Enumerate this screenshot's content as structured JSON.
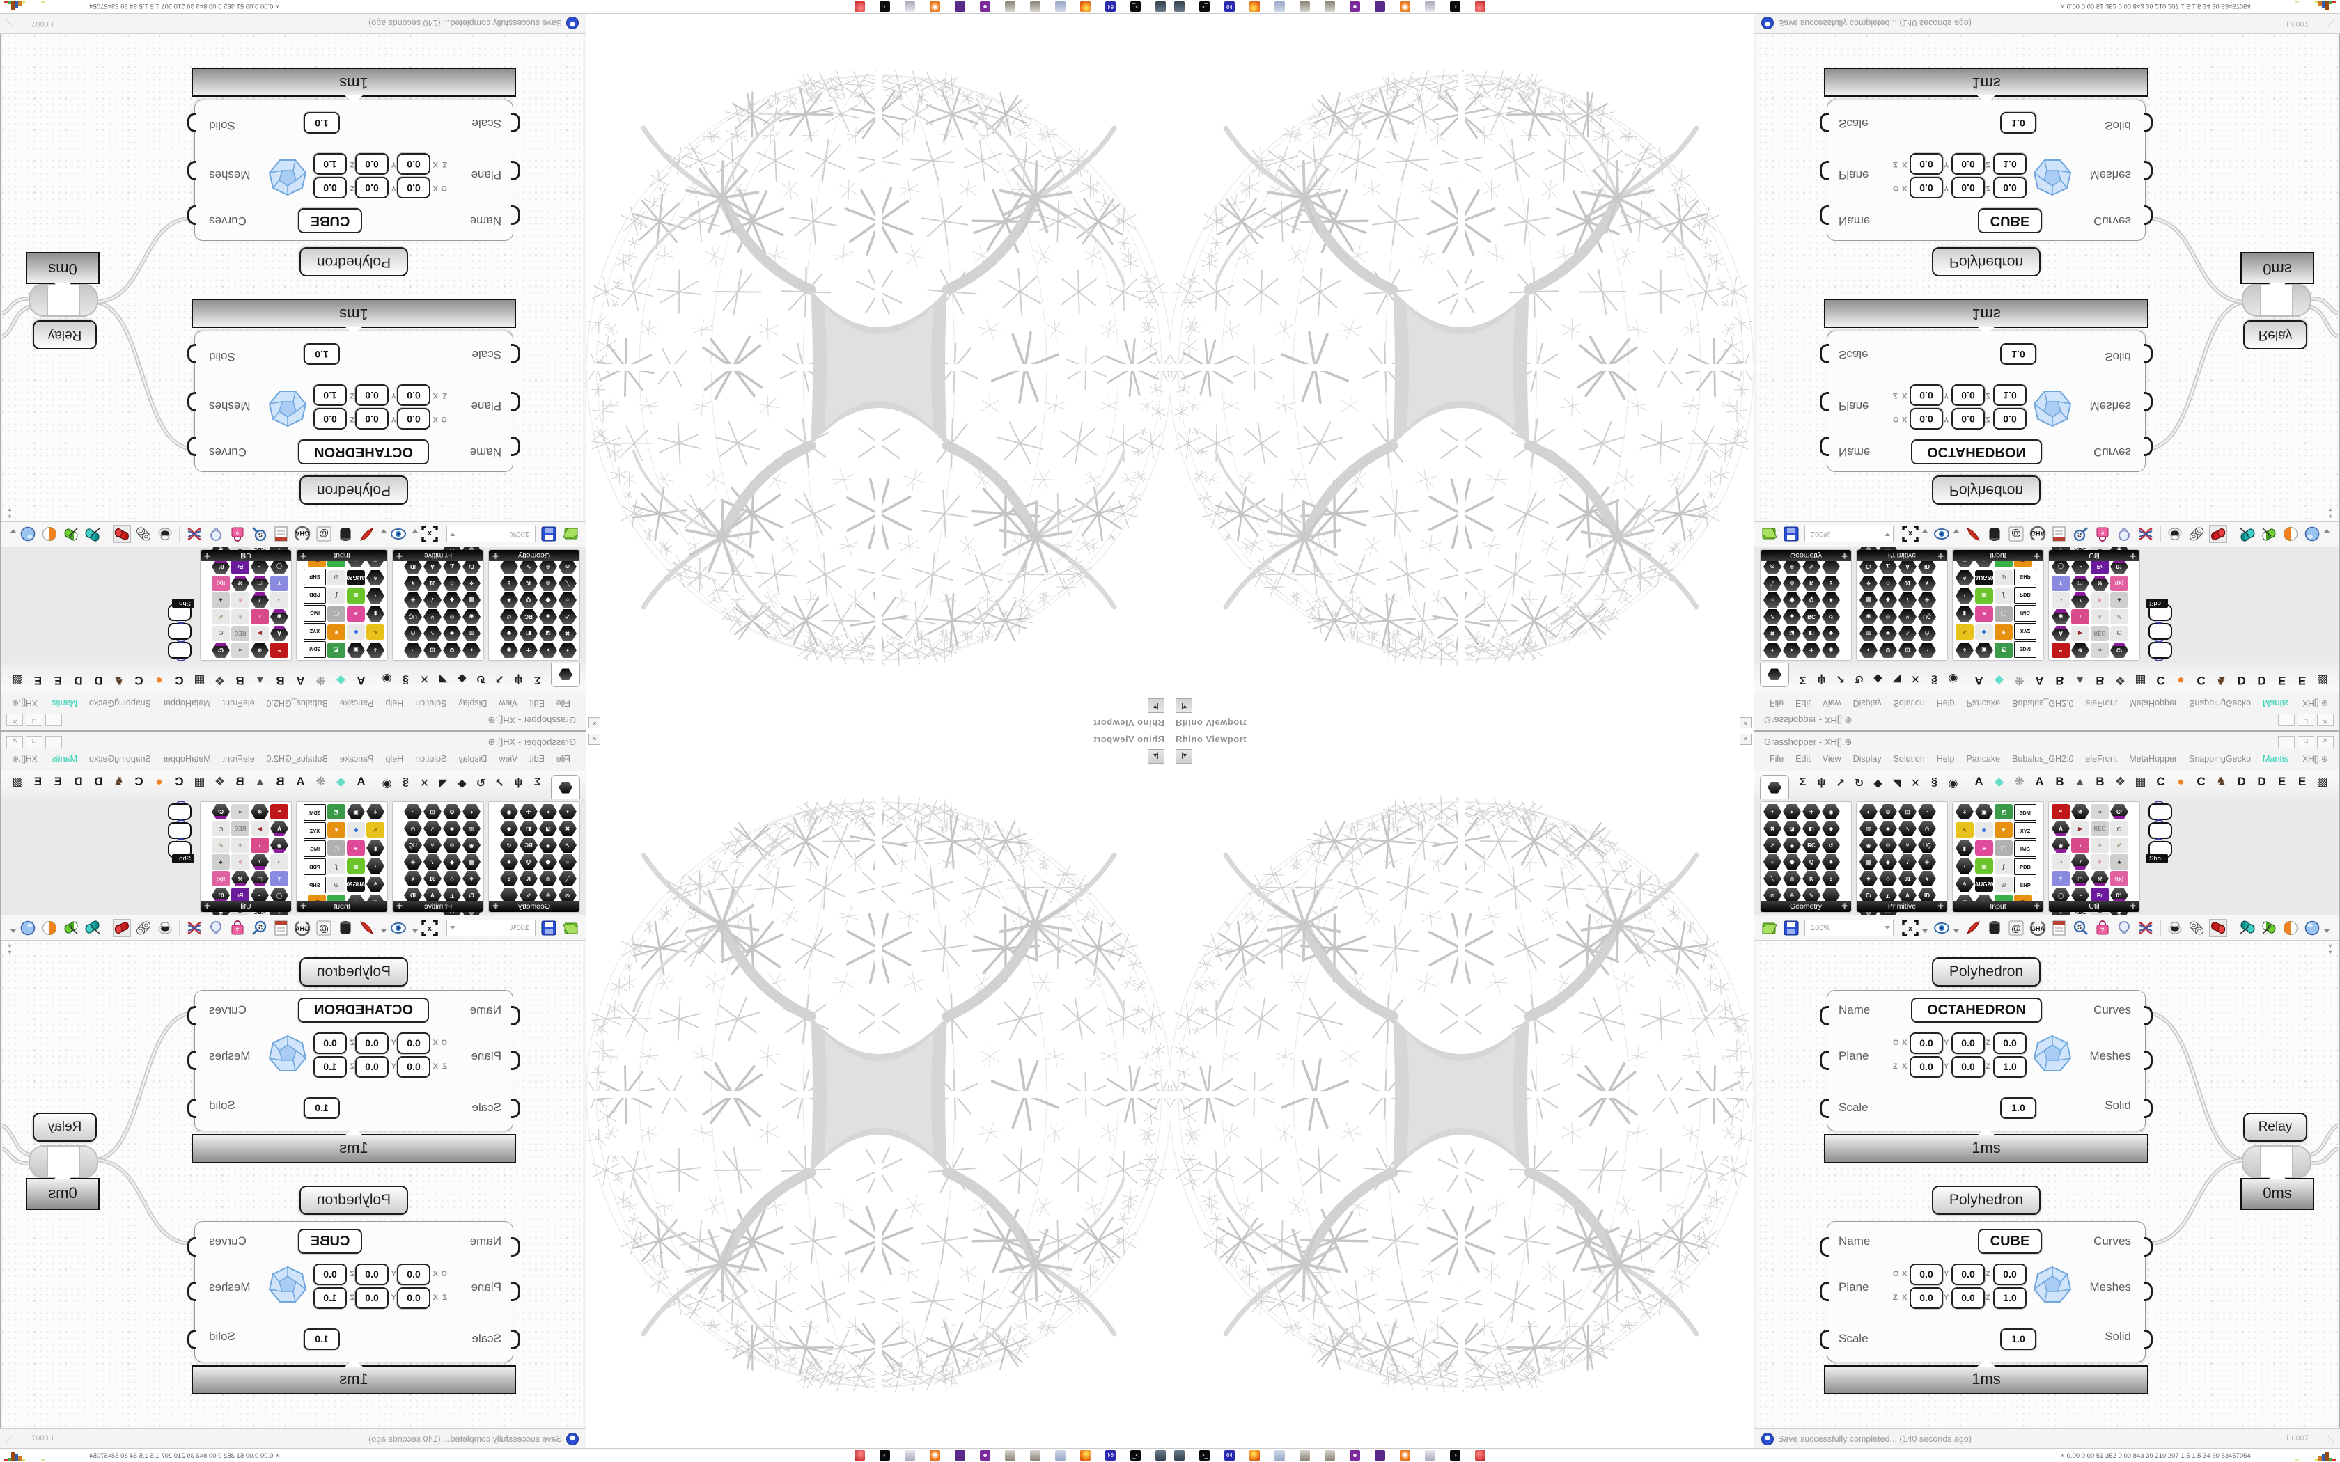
{
  "window": {
    "title": "Grasshopper - XH[].⊕",
    "buttons": [
      "–",
      "□",
      "✕"
    ]
  },
  "viewport": {
    "title": "Rhino Viewport",
    "close_label": "✕",
    "menu_button": "|▾"
  },
  "menu": {
    "items": [
      "File",
      "Edit",
      "View",
      "Display",
      "Solution",
      "Help",
      "Pancake",
      "Bubalus_GH2.0",
      "eleFront",
      "MetaHopper",
      "SnappingGecko",
      "Mantis"
    ],
    "mantis_color": "#35d3b7",
    "right": "XH[].⊕"
  },
  "tabs": {
    "left": [
      "Σ",
      "ψ",
      "↗",
      "↻",
      "◆",
      "◥",
      "✕",
      "§",
      "◉"
    ],
    "right": [
      {
        "g": "A",
        "c": "#1a1a1a"
      },
      {
        "g": "◆",
        "c": "#63dcc8"
      },
      {
        "g": "❋",
        "c": "#9a9a9a"
      },
      {
        "g": "A",
        "c": "#1a1a1a"
      },
      {
        "g": "B",
        "c": "#1a1a1a"
      },
      {
        "g": "▲",
        "c": "#555555"
      },
      {
        "g": "B",
        "c": "#1a1a1a"
      },
      {
        "g": "❖",
        "c": "#444444"
      },
      {
        "g": "▦",
        "c": "#333333"
      },
      {
        "g": "C",
        "c": "#1a1a1a"
      },
      {
        "g": "●",
        "c": "#f08228"
      },
      {
        "g": "C",
        "c": "#1a1a1a"
      },
      {
        "g": "♞",
        "c": "#5a3a22"
      },
      {
        "g": "D",
        "c": "#1a1a1a"
      },
      {
        "g": "D",
        "c": "#1a1a1a"
      },
      {
        "g": "E",
        "c": "#1a1a1a"
      },
      {
        "g": "E",
        "c": "#1a1a1a"
      },
      {
        "g": "▩",
        "c": "#333333"
      }
    ]
  },
  "palettes": [
    {
      "label": "Geometry",
      "cells": [
        {
          "g": "✦"
        },
        {
          "g": "➤"
        },
        {
          "g": "✚"
        },
        {
          "g": "◉"
        },
        {
          "g": "✖"
        },
        {
          "g": "◪"
        },
        {
          "g": "◧"
        },
        {
          "g": "◆"
        },
        {
          "g": "↗"
        },
        {
          "g": "◈"
        },
        {
          "g": "RC"
        },
        {
          "g": "↺"
        },
        {
          "g": "○"
        },
        {
          "g": "⬟"
        },
        {
          "g": "Q"
        },
        {
          "g": "✸"
        },
        {
          "g": "╲"
        },
        {
          "g": "◍"
        },
        {
          "g": "K"
        },
        {
          "g": "6"
        },
        {
          "g": "⊘"
        },
        {
          "g": "❆"
        },
        {
          "g": "✎"
        },
        {
          "g": ""
        }
      ]
    },
    {
      "label": "Primitive",
      "cells": [
        {
          "g": "◐"
        },
        {
          "g": "✪"
        },
        {
          "g": "⊞"
        },
        {
          "g": "◔"
        },
        {
          "g": "▥"
        },
        {
          "g": "◈"
        },
        {
          "g": "➴"
        },
        {
          "g": "◷"
        },
        {
          "g": "◉"
        },
        {
          "g": "⚙"
        },
        {
          "g": "⑂"
        },
        {
          "g": "UÇ"
        },
        {
          "g": "▦"
        },
        {
          "g": "◆"
        },
        {
          "g": "7"
        },
        {
          "g": "＋"
        },
        {
          "g": "❖"
        },
        {
          "g": "◇"
        },
        {
          "g": "01"
        },
        {
          "g": "#"
        },
        {
          "g": "C/"
        },
        {
          "g": "◭"
        },
        {
          "g": "A"
        },
        {
          "g": "ID"
        },
        {
          "g": "◍"
        },
        {
          "g": "◠"
        }
      ]
    },
    {
      "label": "Input",
      "cells": [
        {
          "g": "⇩"
        },
        {
          "g": "▣"
        },
        {
          "g": "◩",
          "bg": "#3a9a4a"
        },
        {
          "g": "3DM",
          "chip": true
        },
        {
          "g": "∿",
          "bg": "#e8c21a",
          "fg": "#7a5a00"
        },
        {
          "g": "✚",
          "bg": "#e8e8e8",
          "fg": "#2a6ae0"
        },
        {
          "g": "▼",
          "bg": "#e89010"
        },
        {
          "g": "XYZ",
          "chip": true
        },
        {
          "g": "▮"
        },
        {
          "g": "▰",
          "bg": "#e04a9a"
        },
        {
          "g": "◯",
          "bg": "#b0b0b0",
          "fg": "#fff"
        },
        {
          "g": "IMG",
          "chip": true
        },
        {
          "g": "◖"
        },
        {
          "g": "▦",
          "bg": "#6ac42a"
        },
        {
          "g": "∫",
          "bg": "#e8e8e8",
          "fg": "#111"
        },
        {
          "g": "PDB",
          "chip": true
        },
        {
          "g": "ϟ"
        },
        {
          "g": "AUG20",
          "bg": "#111",
          "fg": "#fff"
        },
        {
          "g": "◎",
          "bg": "#e8e8e8",
          "fg": "#333"
        },
        {
          "g": "SHP",
          "chip": true
        },
        {
          "g": "≣"
        },
        {
          "g": "◴"
        },
        {
          "g": "▥",
          "bg": "#3ab04a"
        },
        {
          "g": "ID.",
          "bg": "#e89010",
          "fg": "#7a2a00"
        }
      ]
    },
    {
      "label": "Util",
      "cells": [
        {
          "g": "❝",
          "bg": "#c01818"
        },
        {
          "g": "↺"
        },
        {
          "g": "⇨",
          "bg": "#d8d8d8",
          "fg": "#555"
        },
        {
          "g": "C/",
          "ex": true
        },
        {
          "g": "A",
          "ex": true
        },
        {
          "g": "▶",
          "bg": "#e8e8e8",
          "fg": "#9a2a2a"
        },
        {
          "g": "REC",
          "bg": "#d0d0d0",
          "fg": "#888"
        },
        {
          "g": "◵",
          "bg": "#e8e8e8",
          "fg": "#111"
        },
        {
          "g": "◉",
          "ex": true
        },
        {
          "g": "◗",
          "bg": "#d84a8a"
        },
        {
          "g": "⚛",
          "bg": "#e8e8e8",
          "fg": "#3a6a3a"
        },
        {
          "g": "✐",
          "bg": "#e8e8e8",
          "fg": "#7a6a3a"
        },
        {
          "g": "◔",
          "bg": "#e8e8e8",
          "fg": "#111"
        },
        {
          "g": "7",
          "ex": true
        },
        {
          "g": "⚱",
          "bg": "#e8e8e8",
          "fg": "#d84a9a"
        },
        {
          "g": "♣",
          "bg": "#cfcfcf",
          "fg": "#333"
        },
        {
          "g": "Y",
          "bg": "#8a8ae0"
        },
        {
          "g": "◰",
          "ex": true
        },
        {
          "g": "⚒",
          "ex": true
        },
        {
          "g": "f(x)",
          "bg": "#e060a0"
        },
        {
          "g": "◯"
        },
        {
          "g": "◔"
        },
        {
          "g": "Pr",
          "bg": "#6a1a9a"
        },
        {
          "g": "01",
          "ex": true
        },
        {
          "g": "◒",
          "bg": "#333"
        },
        {
          "g": "ABC",
          "bg": "#e8e8e8",
          "fg": "#111"
        },
        {
          "g": "➡",
          "bg": "#d8d8d8",
          "fg": "#555"
        },
        {
          "g": "◉",
          "ex": true
        },
        {
          "g": "✖",
          "ex": true
        }
      ]
    }
  ],
  "palette_extra": {
    "tooltip": "Sho.."
  },
  "toolbar": {
    "zoom": "100%",
    "icons": [
      "open",
      "save",
      "frame",
      "eye",
      "quill",
      "barrel",
      "at",
      "gha",
      "doc-flag",
      "mag",
      "bag",
      "bulb",
      "crossx",
      "clam",
      "cylwire",
      "cylred",
      "cylteal",
      "cylgreen",
      "ballorange",
      "ballblue"
    ]
  },
  "canvas": {
    "components": [
      {
        "header": "Polyhedron",
        "name": "OCTAHEDRON",
        "inputs": [
          "Name",
          "Plane",
          "Scale"
        ],
        "outputs": [
          "Curves",
          "Meshes",
          "Solid"
        ],
        "plane": [
          {
            "p": "O",
            "x": "0.0",
            "y": "0.0",
            "z": "0.0"
          },
          {
            "p": "Z",
            "x": "0.0",
            "y": "0.0",
            "z": "1.0"
          }
        ],
        "scale": "1.0",
        "timer": "1ms",
        "xyz": [
          "X",
          "Y",
          "Z"
        ]
      },
      {
        "header": "Polyhedron",
        "name": "CUBE",
        "inputs": [
          "Name",
          "Plane",
          "Scale"
        ],
        "outputs": [
          "Curves",
          "Meshes",
          "Solid"
        ],
        "plane": [
          {
            "p": "O",
            "x": "0.0",
            "y": "0.0",
            "z": "0.0"
          },
          {
            "p": "Z",
            "x": "0.0",
            "y": "0.0",
            "z": "1.0"
          }
        ],
        "scale": "1.0",
        "timer": "1ms",
        "xyz": [
          "X",
          "Y",
          "Z"
        ]
      }
    ],
    "relay": {
      "label": "Relay",
      "timer": "0ms"
    }
  },
  "statusbar": {
    "message": "Save successfully completed... (140 seconds ago)",
    "value": "1,0007",
    "grip": "⋱"
  },
  "taskbar": {
    "apps": [
      "monitor",
      "terminal",
      "cal64",
      "firefox",
      "calc",
      "gimp",
      "gimp2",
      "chat-purple",
      "moon-purple",
      "blender",
      "printer",
      "contrast-bw",
      "gem-red"
    ],
    "stats": "⋏  0.00 0.00  51  352 0.00 843  39  210 207  1.5  1.5  34  30 53457054",
    "chart_bars": [
      [
        "#dfe05a",
        3
      ],
      [
        "#cf7a22",
        7
      ],
      [
        "#2f5fae",
        10
      ],
      [
        "#9a4a10",
        13
      ],
      [
        "#42a642",
        4
      ],
      [
        "#cc3322",
        2
      ]
    ]
  }
}
